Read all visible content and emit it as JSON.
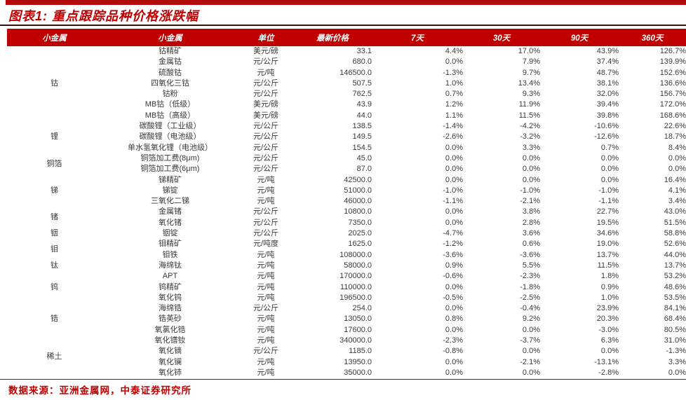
{
  "colors": {
    "accent_red": "#c00000",
    "top_bar_red": "#b20b0b",
    "header_bg": "#c00000",
    "header_text": "#ffffff",
    "title_rule": "#3c1010",
    "footer_rule": "#7a1a1a",
    "body_text": "#3a3a3a"
  },
  "chart_data": {
    "type": "table",
    "title": "图表1: 重点跟踪品种价格涨跌幅",
    "source": "数据来源：亚洲金属网，中泰证券研究所",
    "columns": [
      "小金属",
      "小金属",
      "单位",
      "最新价格",
      "7天",
      "30天",
      "90天",
      "360天"
    ],
    "groups": [
      {
        "category": "钴",
        "rows": [
          [
            "钴精矿",
            "美元/磅",
            "33.1",
            "4.4%",
            "17.0%",
            "43.9%",
            "126.7%"
          ],
          [
            "金属钴",
            "元/公斤",
            "680.0",
            "0.0%",
            "7.9%",
            "37.4%",
            "139.9%"
          ],
          [
            "硫酸钴",
            "元/吨",
            "146500.0",
            "-1.3%",
            "9.7%",
            "48.7%",
            "152.6%"
          ],
          [
            "四氧化三钴",
            "元/公斤",
            "507.5",
            "1.0%",
            "13.4%",
            "38.1%",
            "136.6%"
          ],
          [
            "钴粉",
            "元/公斤",
            "762.5",
            "0.7%",
            "9.3%",
            "32.0%",
            "156.7%"
          ],
          [
            "MB钴（低级）",
            "美元/磅",
            "43.9",
            "1.2%",
            "11.9%",
            "39.4%",
            "172.0%"
          ],
          [
            "MB钴（高级）",
            "美元/磅",
            "44.0",
            "1.1%",
            "11.5%",
            "39.8%",
            "168.6%"
          ]
        ]
      },
      {
        "category": "锂",
        "rows": [
          [
            "碳酸锂（工业级）",
            "元/公斤",
            "138.5",
            "-1.4%",
            "-4.2%",
            "-10.6%",
            "22.6%"
          ],
          [
            "碳酸锂（电池级）",
            "元/公斤",
            "149.5",
            "-2.6%",
            "-3.2%",
            "-12.6%",
            "18.7%"
          ],
          [
            "单水氢氧化锂（电池级）",
            "元/公斤",
            "154.5",
            "0.0%",
            "3.3%",
            "0.7%",
            "8.4%"
          ]
        ]
      },
      {
        "category": "铜箔",
        "rows": [
          [
            "铜箔加工费(8μm)",
            "元/公斤",
            "45.0",
            "0.0%",
            "0.0%",
            "0.0%",
            "0.0%"
          ],
          [
            "铜箔加工费(6μm)",
            "元/公斤",
            "87.0",
            "0.0%",
            "0.0%",
            "0.0%",
            "0.0%"
          ]
        ]
      },
      {
        "category": "锑",
        "rows": [
          [
            "锑精矿",
            "元/吨",
            "42500.0",
            "0.0%",
            "0.0%",
            "0.0%",
            "16.4%"
          ],
          [
            "锑锭",
            "元/吨",
            "51000.0",
            "-1.0%",
            "-1.0%",
            "-1.0%",
            "4.1%"
          ],
          [
            "三氧化二锑",
            "元/吨",
            "46000.0",
            "-1.1%",
            "-2.1%",
            "-1.1%",
            "3.4%"
          ]
        ]
      },
      {
        "category": "锗",
        "rows": [
          [
            "金属锗",
            "元/公斤",
            "10800.0",
            "0.0%",
            "3.8%",
            "22.7%",
            "43.0%"
          ],
          [
            "氧化锗",
            "元/公斤",
            "7350.0",
            "0.0%",
            "2.8%",
            "19.5%",
            "51.5%"
          ]
        ]
      },
      {
        "category": "铟",
        "rows": [
          [
            "铟锭",
            "元/公斤",
            "2025.0",
            "-4.7%",
            "3.6%",
            "34.6%",
            "58.8%"
          ]
        ]
      },
      {
        "category": "钼",
        "rows": [
          [
            "钼精矿",
            "元/吨度",
            "1625.0",
            "-1.2%",
            "0.6%",
            "19.0%",
            "52.6%"
          ],
          [
            "钼铁",
            "元/吨",
            "108000.0",
            "-3.6%",
            "-3.6%",
            "13.7%",
            "44.0%"
          ]
        ]
      },
      {
        "category": "钛",
        "rows": [
          [
            "海绵钛",
            "元/吨",
            "58000.0",
            "0.9%",
            "5.5%",
            "11.5%",
            "13.7%"
          ]
        ]
      },
      {
        "category": "钨",
        "rows": [
          [
            "APT",
            "元/吨",
            "170000.0",
            "-0.6%",
            "-2.3%",
            "1.8%",
            "53.2%"
          ],
          [
            "钨精矿",
            "元/吨",
            "110000.0",
            "0.0%",
            "-1.8%",
            "0.9%",
            "48.6%"
          ],
          [
            "氧化钨",
            "元/吨",
            "196500.0",
            "-0.5%",
            "-2.5%",
            "1.0%",
            "53.5%"
          ]
        ]
      },
      {
        "category": "锆",
        "rows": [
          [
            "海绵锆",
            "元/公斤",
            "254.0",
            "0.0%",
            "-0.4%",
            "23.9%",
            "84.1%"
          ],
          [
            "锆英砂",
            "元/吨",
            "13050.0",
            "0.8%",
            "9.2%",
            "20.3%",
            "68.4%"
          ],
          [
            "氧氯化锆",
            "元/吨",
            "17600.0",
            "0.0%",
            "0.0%",
            "-3.0%",
            "80.5%"
          ]
        ]
      },
      {
        "category": "稀土",
        "rows": [
          [
            "氧化镨钕",
            "元/吨",
            "340000.0",
            "-2.3%",
            "-3.7%",
            "6.3%",
            "31.0%"
          ],
          [
            "氧化镝",
            "元/公斤",
            "1185.0",
            "-0.8%",
            "0.0%",
            "0.0%",
            "-1.3%"
          ],
          [
            "氧化镧",
            "元/吨",
            "13950.0",
            "0.0%",
            "-2.1%",
            "-13.1%",
            "3.3%"
          ],
          [
            "氧化铈",
            "元/吨",
            "35000.0",
            "0.0%",
            "0.0%",
            "-2.8%",
            "0.0%"
          ]
        ]
      }
    ]
  }
}
